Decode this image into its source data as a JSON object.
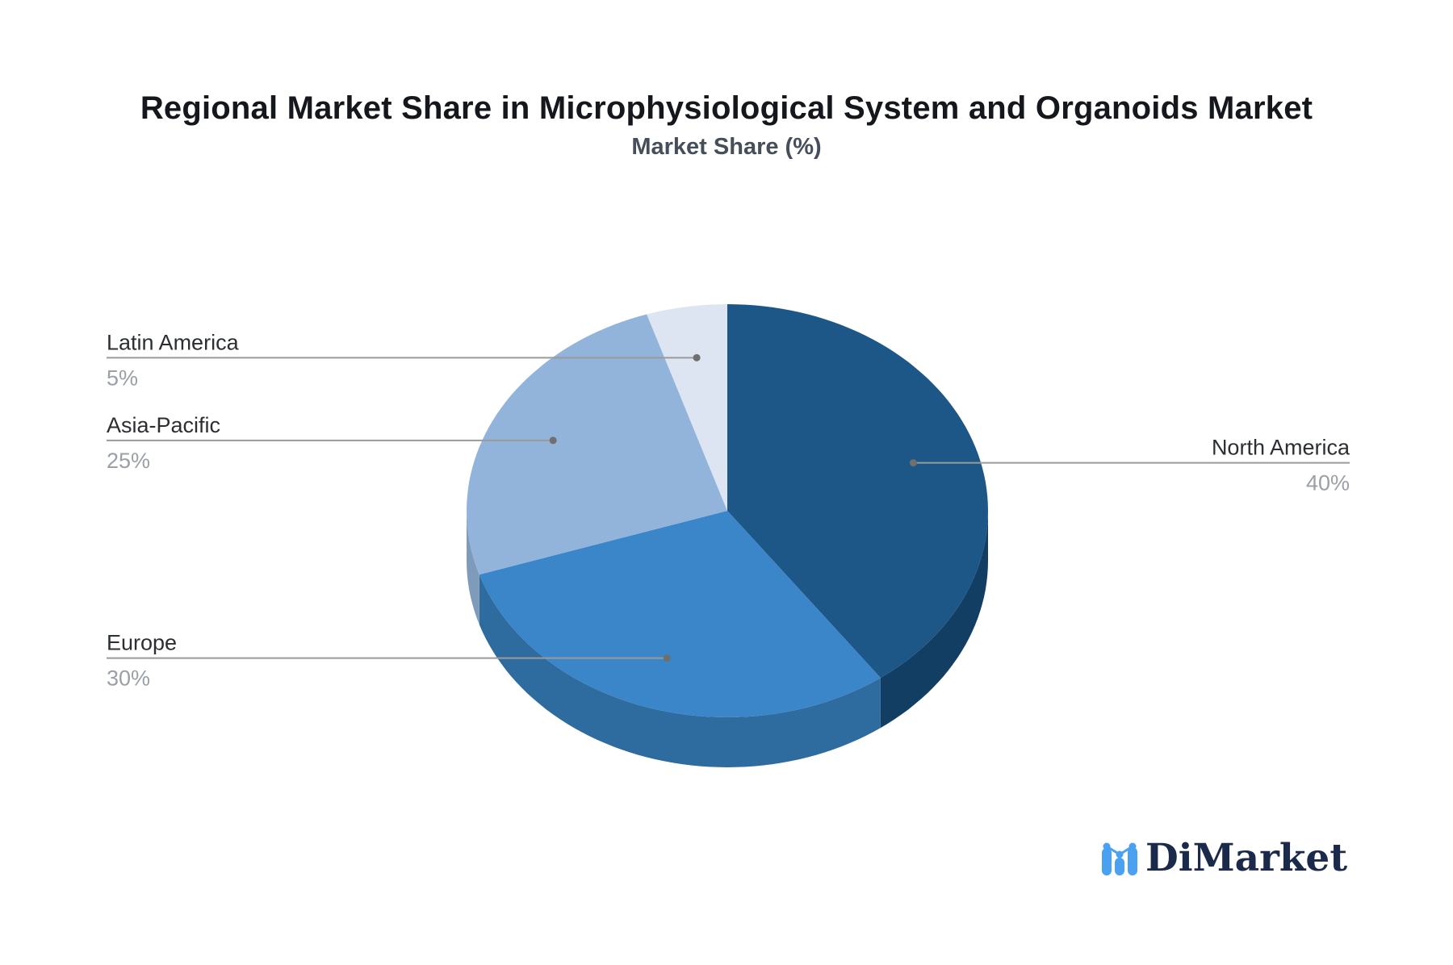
{
  "chart_data": {
    "type": "pie",
    "style": "3d",
    "title": "Regional Market Share in Microphysiological System and Organoids Market",
    "subtitle": "Market Share (%)",
    "unit": "%",
    "legend_position": "none",
    "categories": [
      "North America",
      "Europe",
      "Asia-Pacific",
      "Latin America"
    ],
    "values": [
      40,
      30,
      25,
      5
    ],
    "slices": [
      {
        "label": "North America",
        "value": 40,
        "pct_label": "40%",
        "color": "#1C5788",
        "side_color": "#123E63",
        "label_side": "right"
      },
      {
        "label": "Europe",
        "value": 30,
        "pct_label": "30%",
        "color": "#3A86C8",
        "side_color": "#2E6B9E",
        "label_side": "left"
      },
      {
        "label": "Asia-Pacific",
        "value": 25,
        "pct_label": "25%",
        "color": "#92B4DB",
        "side_color": "#7E9BBA",
        "label_side": "left"
      },
      {
        "label": "Latin America",
        "value": 5,
        "pct_label": "5%",
        "color": "#DCE5F1",
        "side_color": "#C3CFDF",
        "label_side": "left"
      }
    ],
    "colors": {
      "label_text": "#2b2e33",
      "pct_text": "#9aa0a6",
      "leader_line": "#9a9a9a",
      "leader_dot": "#6f6f6f",
      "title_text": "#14171c",
      "subtitle_text": "#454e59"
    }
  },
  "logo": {
    "text": "DiMarket",
    "icon": "bar-chart-with-trend-dots-icon",
    "icon_color": "#4aa1f1",
    "text_color": "#1b2a4a"
  }
}
